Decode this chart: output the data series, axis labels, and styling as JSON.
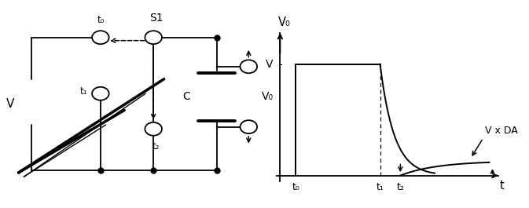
{
  "fig_width": 6.73,
  "fig_height": 2.65,
  "dpi": 100,
  "bg_color": "#ffffff",
  "lc": "#000000",
  "circuit": {
    "V_label": "V",
    "S1_label": "S1",
    "C_label": "C",
    "VO_label": "V₀",
    "t0_label": "t₀",
    "t1_label": "t₁",
    "t2_label": "t₂"
  },
  "graph": {
    "ylabel": "V₀",
    "xlabel": "t",
    "V_label": "V",
    "VxDA_label": "V x DA",
    "t0_label": "t₀",
    "t1_label": "t₁",
    "t2_label": "t₂"
  }
}
